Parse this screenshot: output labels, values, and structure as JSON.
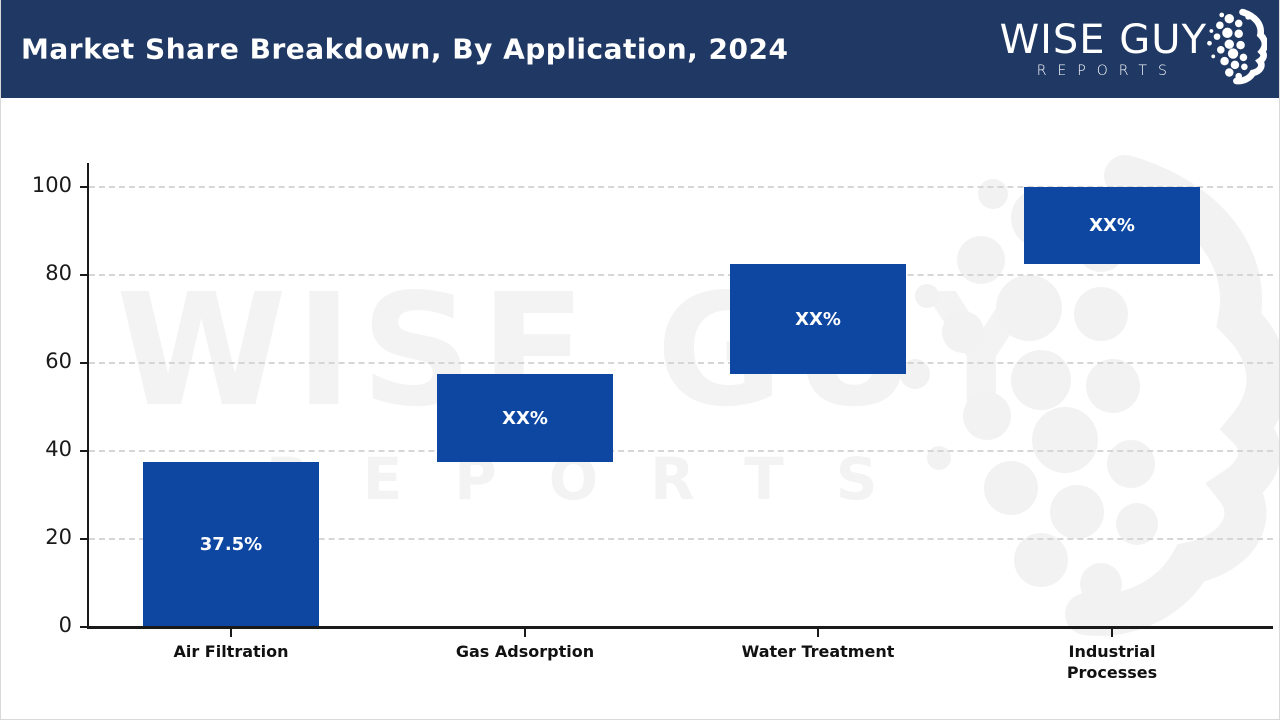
{
  "header": {
    "title": "Market Share Breakdown, By Application, 2024",
    "bg_color": "#1f3864",
    "logo": {
      "primary": "WISE GUY",
      "secondary": "REPORTS"
    }
  },
  "watermark": {
    "line1": "WISE GUY",
    "line2": "REPORTS"
  },
  "chart_data": {
    "type": "bar",
    "subtype": "waterfall-floating-bars",
    "title": "Market Share Breakdown, By Application, 2024",
    "categories": [
      "Air Filtration",
      "Gas Adsorption",
      "Water Treatment",
      "Industrial Processes"
    ],
    "category_display": [
      "Air Filtration",
      "Gas Adsorption",
      "Water Treatment",
      "Industrial\nProcesses"
    ],
    "series": [
      {
        "name": "Market Share (%)",
        "ranges": [
          [
            0,
            37.5
          ],
          [
            37.5,
            57.5
          ],
          [
            57.5,
            82.5
          ],
          [
            82.5,
            100
          ]
        ],
        "segment_sizes": [
          37.5,
          20,
          25,
          17.5
        ]
      }
    ],
    "bar_labels": [
      "37.5%",
      "XX%",
      "XX%",
      "XX%"
    ],
    "xlabel": "",
    "ylabel": "",
    "ylim": [
      0,
      100
    ],
    "yticks": [
      0,
      20,
      40,
      60,
      80,
      100
    ],
    "grid": "horizontal-dashed",
    "legend": "none",
    "bar_color": "#0d47a1",
    "bar_label_color": "#ffffff",
    "axis_color": "#1a1a1a",
    "gridline_color": "#d6d6d6"
  }
}
